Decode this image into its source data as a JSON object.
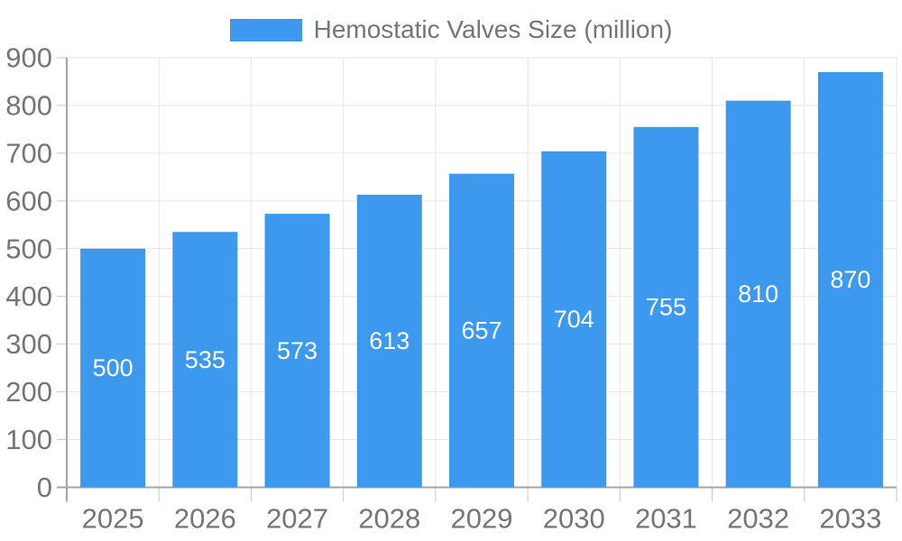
{
  "legend": {
    "label": "Hemostatic Valves Size (million)"
  },
  "colors": {
    "bar": "#3C99ED",
    "grid": "#E6E6E6",
    "tick": "#C6C6C6",
    "axis": "#A5A5A5",
    "text": "#757575",
    "value_label": "#FFFFFF",
    "background": "#FFFFFF"
  },
  "chart_data": {
    "type": "bar",
    "title": "Hemostatic Valves Size (million)",
    "categories": [
      "2025",
      "2026",
      "2027",
      "2028",
      "2029",
      "2030",
      "2031",
      "2032",
      "2033"
    ],
    "values": [
      500,
      535,
      573,
      613,
      657,
      704,
      755,
      810,
      870
    ],
    "xlabel": "",
    "ylabel": "",
    "ylim": [
      0,
      900
    ],
    "ytick_step": 100,
    "grid": true,
    "legend_position": "top",
    "value_labels": "inside-center"
  }
}
